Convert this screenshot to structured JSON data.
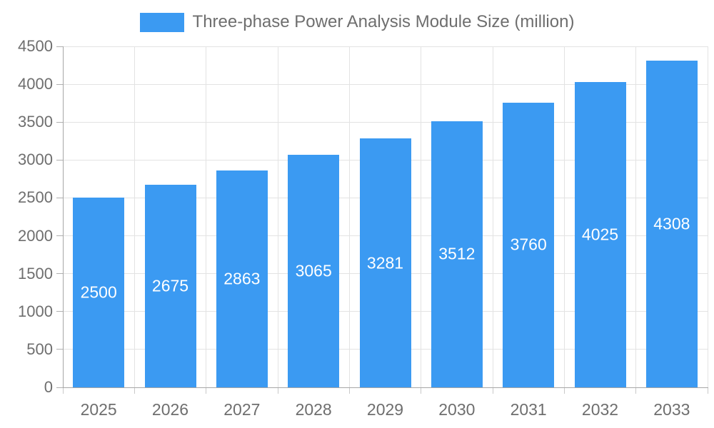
{
  "legend": {
    "label": "Three-phase Power Analysis Module Size (million)"
  },
  "chart_data": {
    "type": "bar",
    "title": "Three-phase Power Analysis Module Size (million)",
    "categories": [
      "2025",
      "2026",
      "2027",
      "2028",
      "2029",
      "2030",
      "2031",
      "2032",
      "2033"
    ],
    "values": [
      2500,
      2675,
      2863,
      3065,
      3281,
      3512,
      3760,
      4025,
      4308
    ],
    "xlabel": "",
    "ylabel": "",
    "ylim": [
      0,
      4500
    ],
    "ytick_step": 500,
    "yticks": [
      0,
      500,
      1000,
      1500,
      2000,
      2500,
      3000,
      3500,
      4000,
      4500
    ],
    "grid": true,
    "legend_position": "top-center",
    "bar_color": "#3b9af2",
    "value_label_color": "#ffffff",
    "axis_label_color": "#6e6e6e",
    "gridline_color": "#e3e3e3",
    "axis_line_color": "#a6a6a6"
  }
}
